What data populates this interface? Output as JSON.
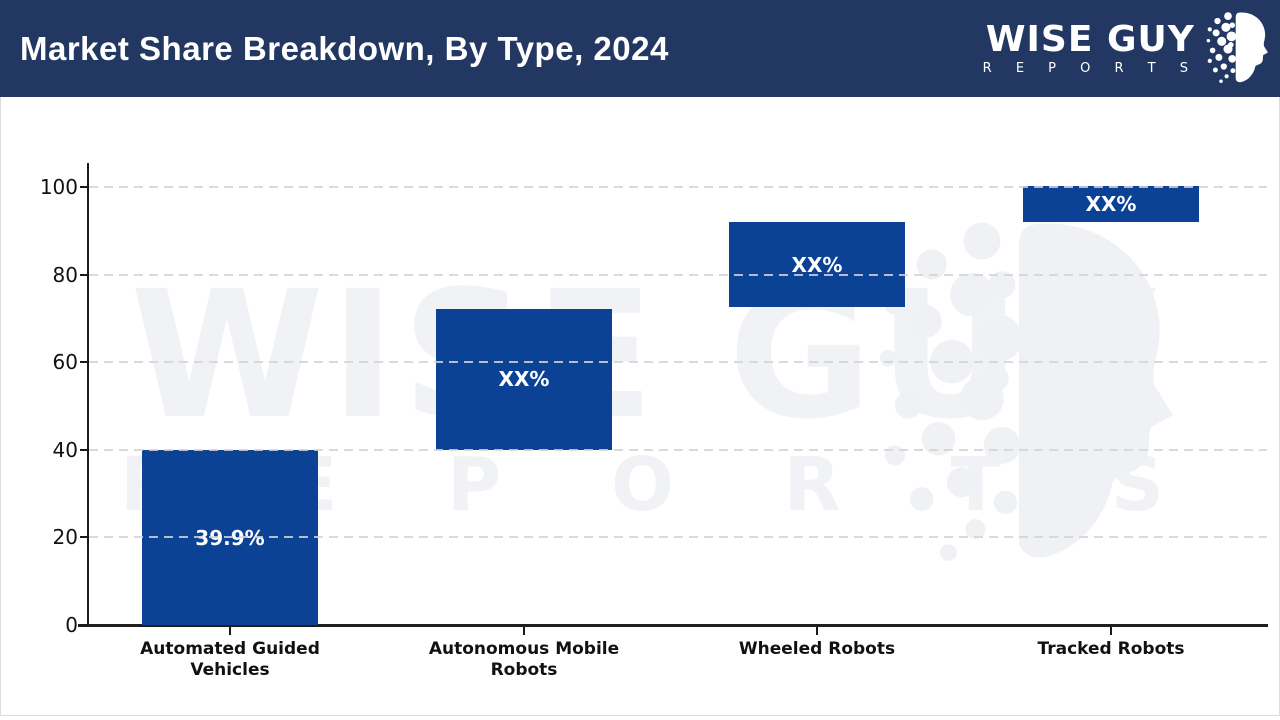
{
  "header": {
    "title": "Market Share Breakdown, By Type, 2024",
    "logo": {
      "line1": "WISE GUY",
      "line2": "R E P O R T S"
    }
  },
  "watermark": {
    "line1": "WISE GUY",
    "line2": "R E P O R T S"
  },
  "colors": {
    "header_bg": "#223862",
    "bar": "#0B4296",
    "grid": "#D3D3D3",
    "axis": "#1A1A1A",
    "value_label": "#FFFFFF",
    "watermark": "#F1F2F5"
  },
  "chart_data": {
    "type": "bar",
    "subtype": "waterfall",
    "title": "Market Share Breakdown, By Type, 2024",
    "categories": [
      "Automated Guided\nVehicles",
      "Autonomous Mobile\nRobots",
      "Wheeled Robots",
      "Tracked Robots"
    ],
    "segments": [
      {
        "category": "Automated Guided Vehicles",
        "label": "39.9%",
        "start": 0,
        "end": 39.9
      },
      {
        "category": "Autonomous Mobile Robots",
        "label": "XX%",
        "start": 39.9,
        "end": 72.2
      },
      {
        "category": "Wheeled Robots",
        "label": "XX%",
        "start": 72.5,
        "end": 92.0
      },
      {
        "category": "Tracked Robots",
        "label": "XX%",
        "start": 92.0,
        "end": 100.2
      }
    ],
    "yticks": [
      0,
      20,
      40,
      60,
      80,
      100
    ],
    "ylim": [
      0,
      105
    ],
    "xlabel": "",
    "ylabel": "",
    "grid": "horizontal dashed",
    "legend": "none"
  }
}
